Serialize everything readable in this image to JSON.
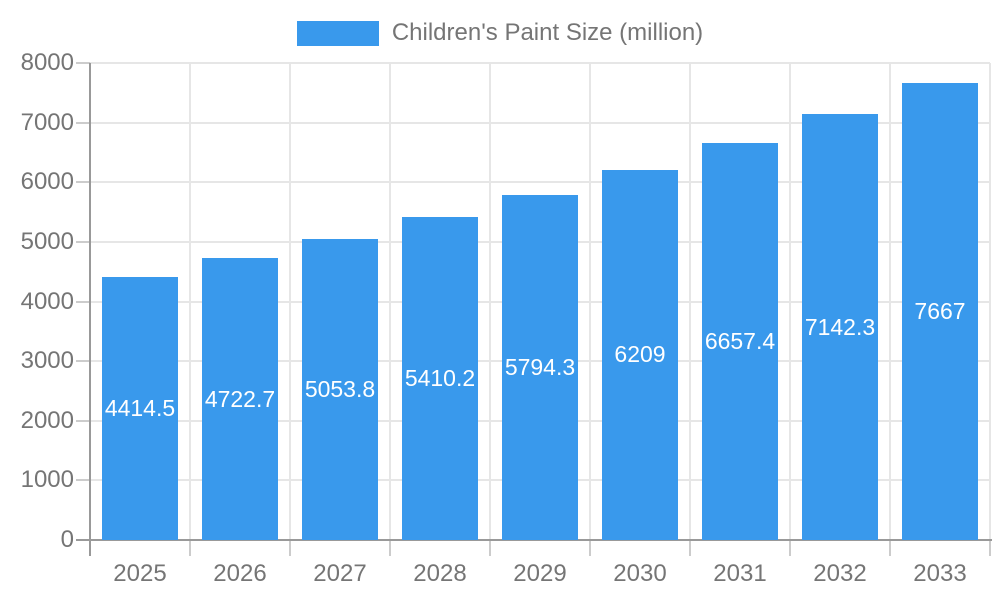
{
  "chart_data": {
    "type": "bar",
    "title": "Children's Paint Size (million)",
    "legend": {
      "label": "Children's Paint Size (million)",
      "position": "top-center"
    },
    "categories": [
      "2025",
      "2026",
      "2027",
      "2028",
      "2029",
      "2030",
      "2031",
      "2032",
      "2033"
    ],
    "series": [
      {
        "name": "Children's Paint Size (million)",
        "values": [
          4414.5,
          4722.7,
          5053.8,
          5410.2,
          5794.3,
          6209,
          6657.4,
          7142.3,
          7667
        ]
      }
    ],
    "bar_labels": [
      "4414.5",
      "4722.7",
      "5053.8",
      "5410.2",
      "5794.3",
      "6209",
      "6657.4",
      "7142.3",
      "7667"
    ],
    "xlabel": "",
    "ylabel": "",
    "ylim": [
      0,
      8000
    ],
    "ytick_step": 1000,
    "ytick_labels": [
      "0",
      "1000",
      "2000",
      "3000",
      "4000",
      "5000",
      "6000",
      "7000",
      "8000"
    ],
    "grid": true,
    "colors": {
      "bar": "#3999EC",
      "bar_label_text": "#ffffff",
      "axis_line": "#999999",
      "grid_line": "#e6e6e6",
      "tick_mark": "#cccccc",
      "axis_text": "#757575",
      "background": "#ffffff"
    }
  }
}
